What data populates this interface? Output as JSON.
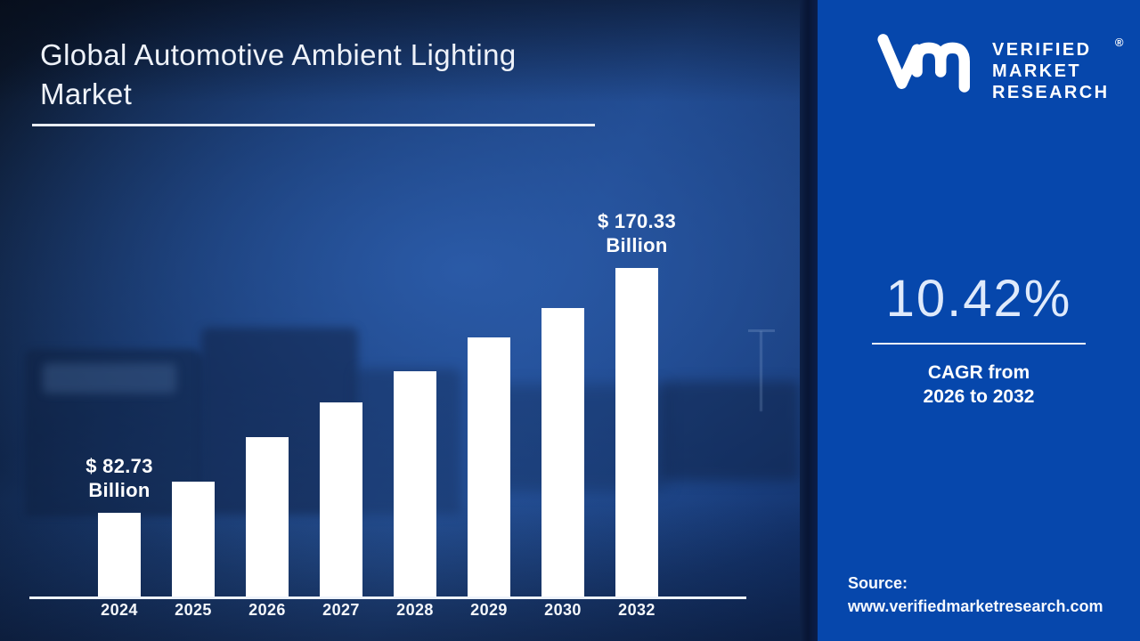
{
  "title": {
    "line1": "Global Automotive Ambient Lighting",
    "line2": "Market"
  },
  "brand": {
    "logo_icon": "vmr-monogram-icon",
    "name_line1": "VERIFIED",
    "name_line2": "MARKET",
    "name_line3": "RESEARCH",
    "registered_mark": "®"
  },
  "sidebar": {
    "background_color": "#0647ac",
    "cagr_value": "10.42%",
    "cagr_caption_line1": "CAGR from",
    "cagr_caption_line2": "2026 to 2032",
    "source_label": "Source:",
    "source_url": "www.verifiedmarketresearch.com"
  },
  "chart_data": {
    "type": "bar",
    "title": "Global Automotive Ambient Lighting Market",
    "unit": "USD Billion",
    "xlabel": "",
    "ylabel": "",
    "gridlines": false,
    "legend": false,
    "bar_color": "#ffffff",
    "axis_line_color": "#eef3fb",
    "categories": [
      "2024",
      "2025",
      "2026",
      "2027",
      "2028",
      "2029",
      "2030",
      "2032"
    ],
    "values_note": "Only 2024 and 2032 are labeled in the image; intermediate values are estimated from bar heights.",
    "bars": [
      {
        "year": "2024",
        "value_billion": 82.73,
        "height_frac": 0.255,
        "annotation": [
          "$ 82.73",
          "Billion"
        ]
      },
      {
        "year": "2025",
        "value_billion": 93.9,
        "height_frac": 0.35,
        "annotation": null
      },
      {
        "year": "2026",
        "value_billion": 109.8,
        "height_frac": 0.485,
        "annotation": null
      },
      {
        "year": "2027",
        "value_billion": 122.2,
        "height_frac": 0.591,
        "annotation": null
      },
      {
        "year": "2028",
        "value_billion": 133.4,
        "height_frac": 0.686,
        "annotation": null
      },
      {
        "year": "2029",
        "value_billion": 145.5,
        "height_frac": 0.789,
        "annotation": null
      },
      {
        "year": "2030",
        "value_billion": 156.0,
        "height_frac": 0.878,
        "annotation": null
      },
      {
        "year": "2032",
        "value_billion": 170.33,
        "height_frac": 1.0,
        "annotation": [
          "$ 170.33",
          "Billion"
        ]
      }
    ]
  }
}
